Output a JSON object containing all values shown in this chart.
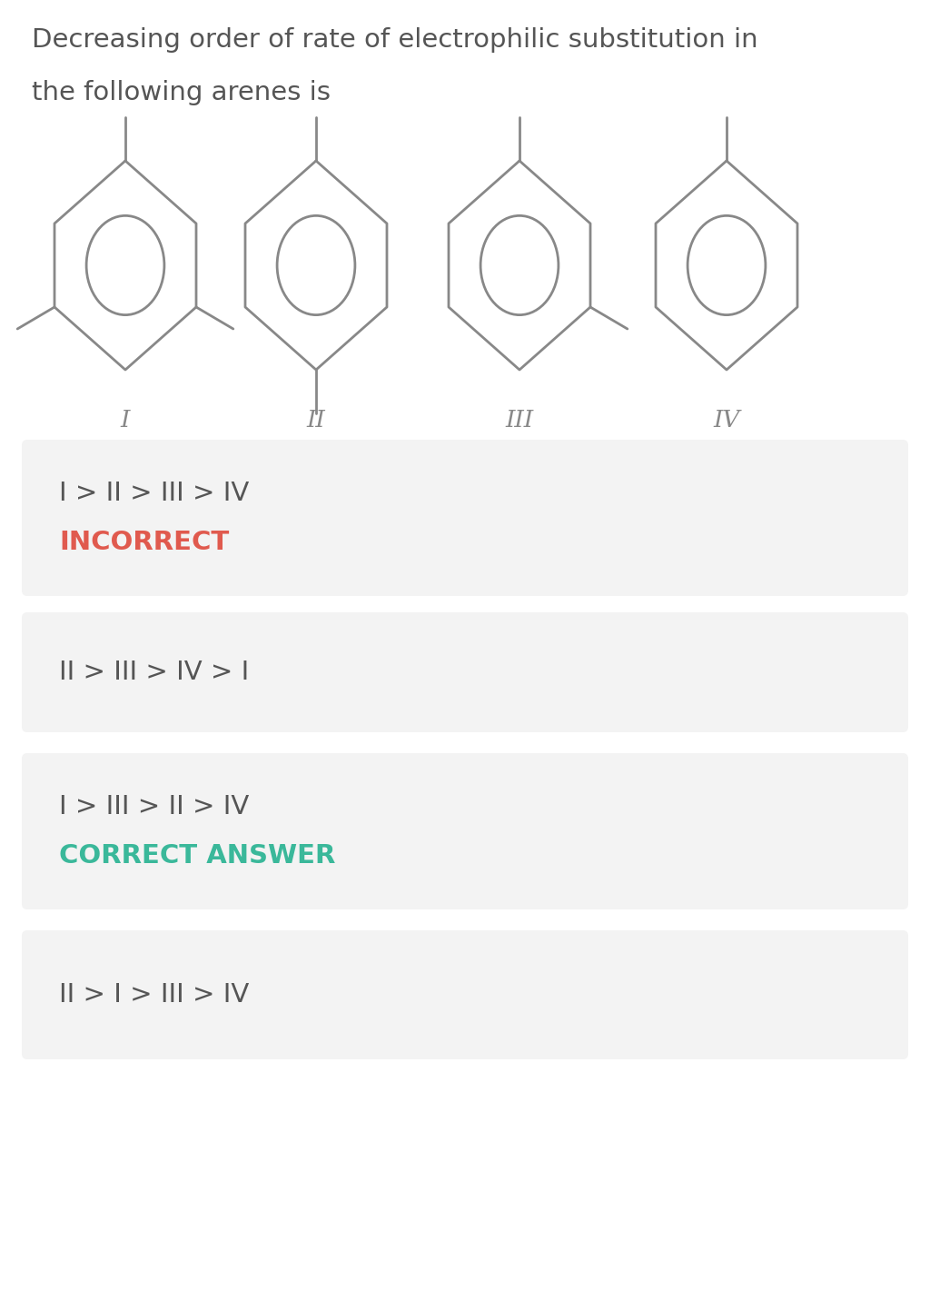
{
  "title_line1": "Decreasing order of rate of electrophilic substitution in",
  "title_line2": "the following arenes is",
  "title_fontsize": 21,
  "title_color": "#555555",
  "background_color": "#ffffff",
  "card_bg_color": "#f3f3f3",
  "options": [
    {
      "text": "I > II > III > IV",
      "label": "INCORRECT",
      "label_color": "#e05a4e"
    },
    {
      "text": "II > III > IV > I",
      "label": "",
      "label_color": ""
    },
    {
      "text": "I > III > II > IV",
      "label": "CORRECT ANSWER",
      "label_color": "#3ab89a"
    },
    {
      "text": "II > I > III > IV",
      "label": "",
      "label_color": ""
    }
  ],
  "molecule_labels": [
    "I",
    "II",
    "III",
    "IV"
  ],
  "molecule_label_color": "#888888",
  "molecule_label_fontsize": 19,
  "line_color": "#888888",
  "line_width": 2.0
}
